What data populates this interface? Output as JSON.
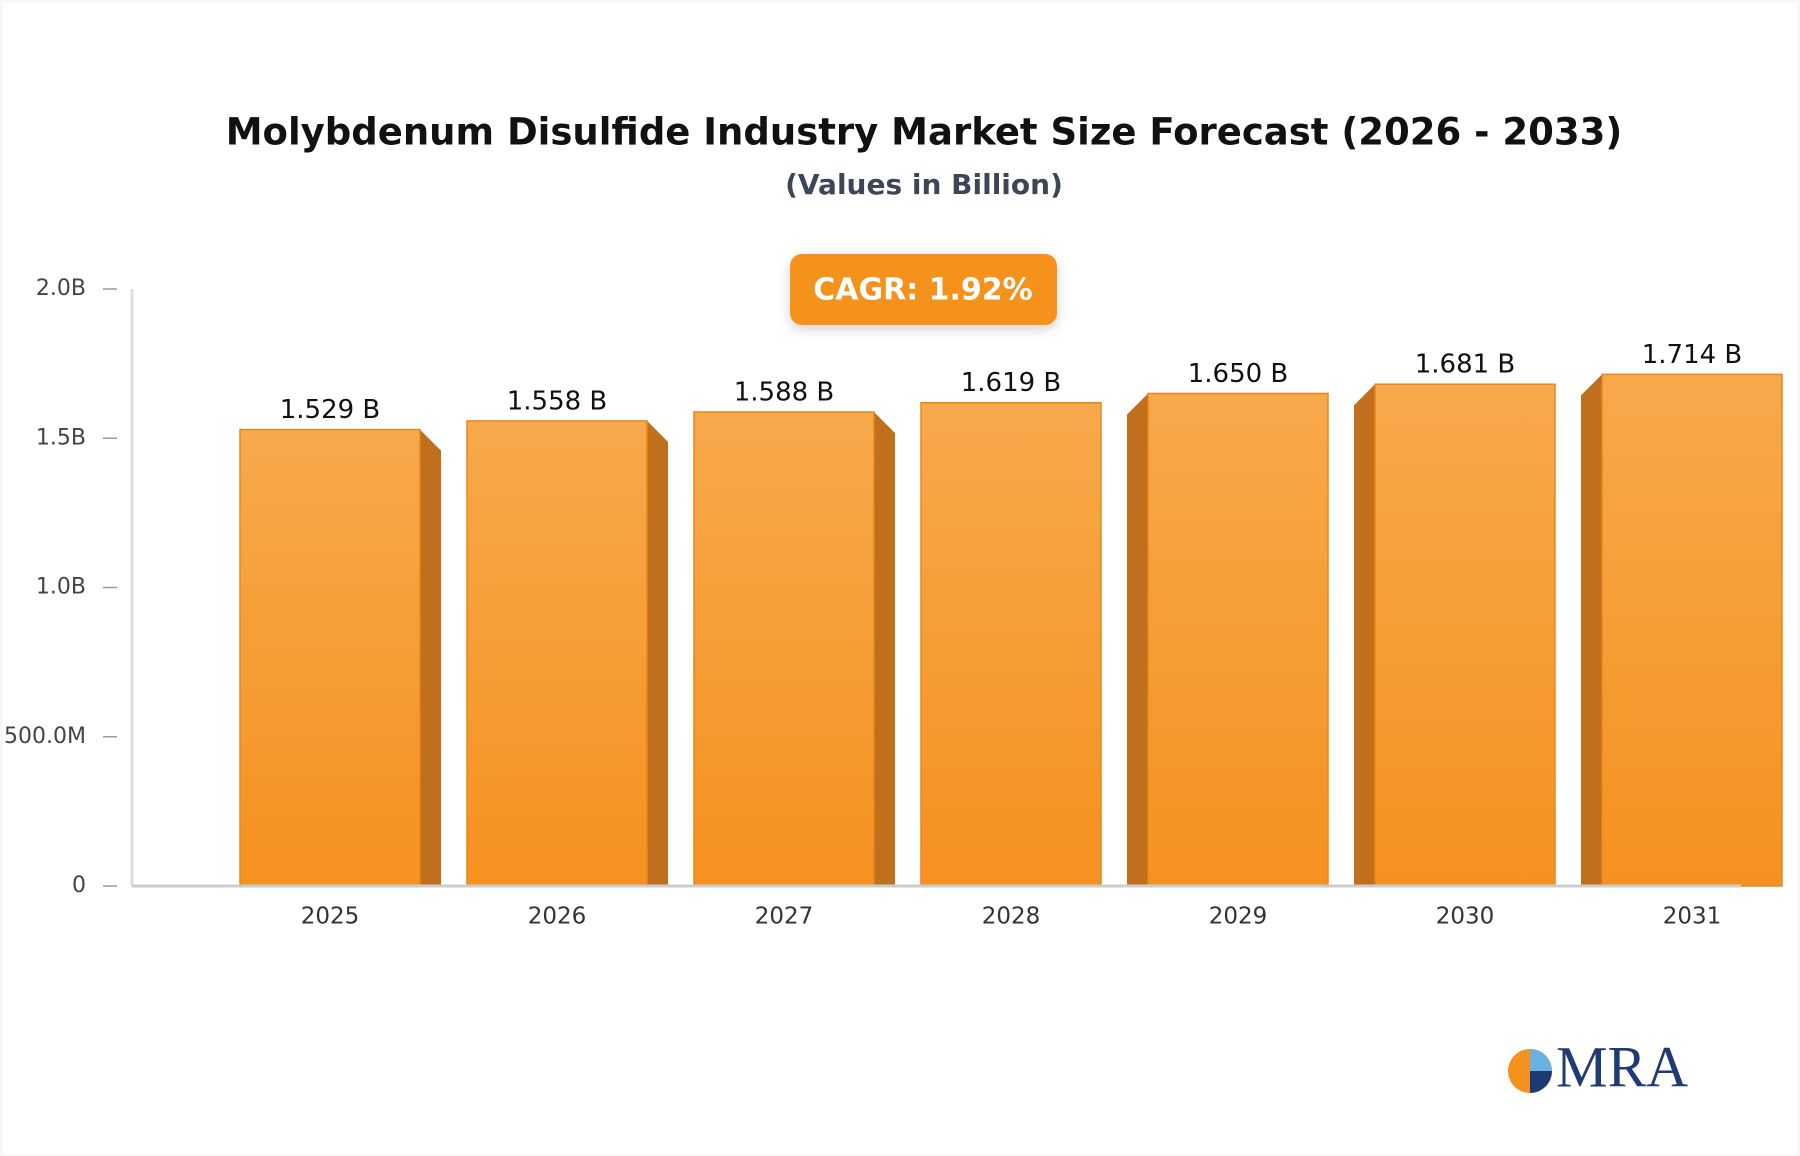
{
  "chart_data": {
    "type": "bar",
    "title": "Molybdenum Disulfide Industry Market Size Forecast (2026 - 2033)",
    "subtitle": "(Values in Billion)",
    "annotation": "CAGR: 1.92%",
    "logo": "MRA",
    "categories": [
      "2025",
      "2026",
      "2027",
      "2028",
      "2029",
      "2030",
      "2031"
    ],
    "values": [
      1.529,
      1.558,
      1.588,
      1.619,
      1.65,
      1.681,
      1.714
    ],
    "value_labels": [
      "1.529 B",
      "1.558 B",
      "1.588 B",
      "1.619 B",
      "1.650 B",
      "1.681 B",
      "1.714 B"
    ],
    "color": "#f59a2c",
    "ylim": [
      0,
      2.0
    ],
    "yticks": [
      0,
      {
        "value": 0.5,
        "label": "500.0M"
      },
      {
        "value": 1.0,
        "label": "1.0B"
      },
      {
        "value": 1.5,
        "label": "1.5B"
      },
      {
        "value": 2.0,
        "label": "2.0B"
      }
    ],
    "grid": false
  }
}
